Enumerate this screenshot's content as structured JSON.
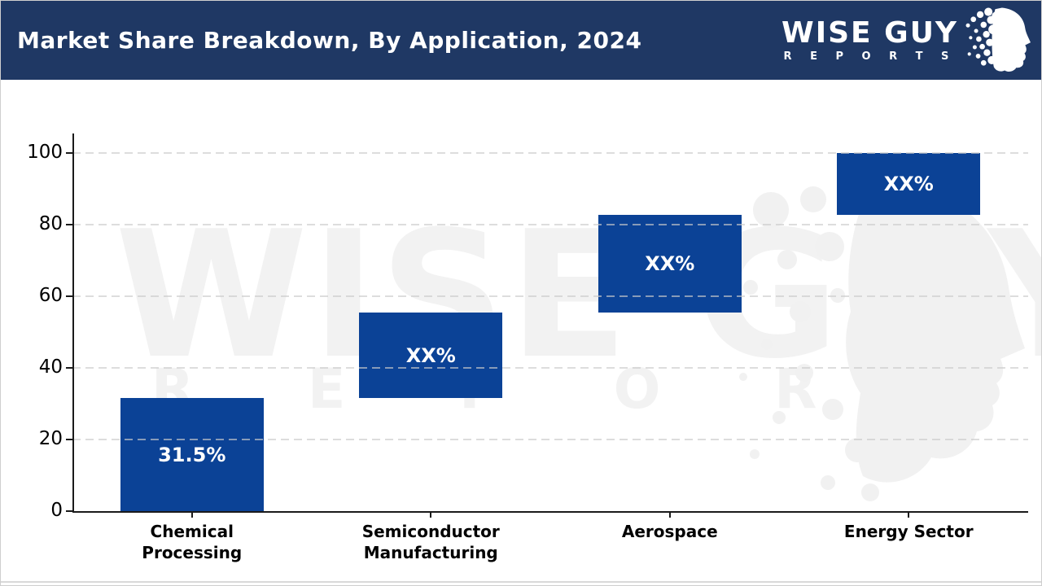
{
  "header": {
    "title": "Market Share Breakdown, By Application, 2024"
  },
  "logo": {
    "line1": "WISE GUY",
    "line2": "R E P O R T S"
  },
  "watermark": {
    "line1": "WISE GUY",
    "line2": "R E P O R T S"
  },
  "chart_data": {
    "type": "bar",
    "subtype": "waterfall",
    "title": "Market Share Breakdown, By Application, 2024",
    "categories": [
      "Chemical\nProcessing",
      "Semiconductor\nManufacturing",
      "Aerospace",
      "Energy Sector"
    ],
    "segments": [
      {
        "category": "Chemical Processing",
        "start": 0,
        "end": 31.5,
        "label": "31.5%"
      },
      {
        "category": "Semiconductor Manufacturing",
        "start": 31.5,
        "end": 55.5,
        "label": "XX%"
      },
      {
        "category": "Aerospace",
        "start": 55.5,
        "end": 82.8,
        "label": "XX%"
      },
      {
        "category": "Energy Sector",
        "start": 82.8,
        "end": 100,
        "label": "XX%"
      }
    ],
    "xlabel": "",
    "ylabel": "",
    "ylim": [
      0,
      105
    ],
    "yticks": [
      0,
      20,
      40,
      60,
      80,
      100
    ],
    "grid": "horizontal-dashed",
    "legend": "none",
    "bar_color": "#0b4296",
    "bar_label_color": "#ffffff",
    "header_bg_color": "#1f3864",
    "grid_color": "#d9d9d9",
    "axis_color": "#1a1a1a",
    "watermark_color": "#f2f2f2"
  }
}
